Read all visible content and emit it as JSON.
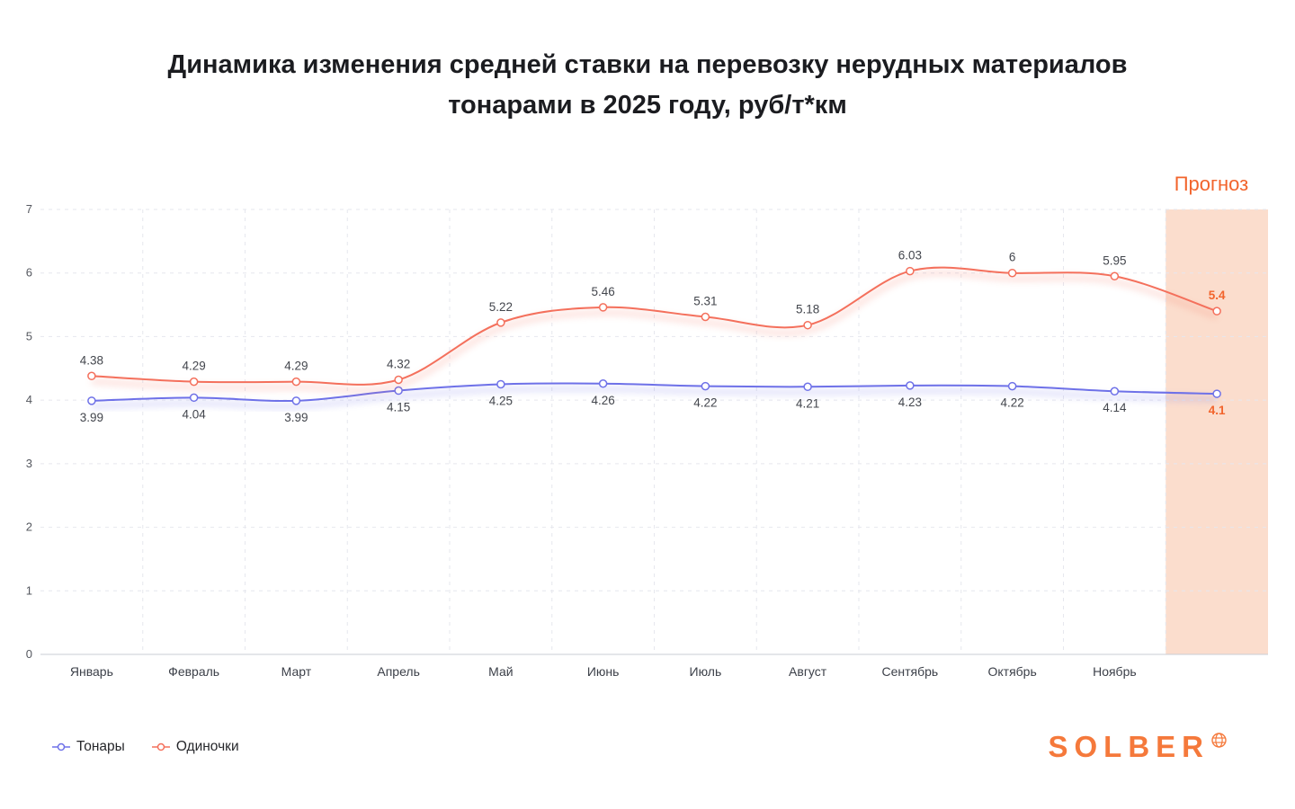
{
  "title": {
    "line1": "Динамика изменения средней ставки на перевозку нерудных материалов",
    "line2": "тонарами в 2025 году, руб/т*км"
  },
  "forecast": {
    "label": "Прогноз",
    "color": "#F2642C",
    "region_fill": "#FBDDCD"
  },
  "legend": {
    "items": [
      {
        "label": "Тонары"
      },
      {
        "label": "Одиночки"
      }
    ]
  },
  "logo": {
    "text": "SOLBER",
    "color": "#F5793B"
  },
  "chart_data": {
    "type": "line",
    "categories": [
      "Январь",
      "Февраль",
      "Март",
      "Апрель",
      "Май",
      "Июнь",
      "Июль",
      "Август",
      "Сентябрь",
      "Октябрь",
      "Ноябрь",
      ""
    ],
    "series": [
      {
        "name": "Тонары",
        "color": "#6E71E8",
        "label_position": "below",
        "values": [
          3.99,
          4.04,
          3.99,
          4.15,
          4.25,
          4.26,
          4.22,
          4.21,
          4.23,
          4.22,
          4.14,
          4.1
        ]
      },
      {
        "name": "Одиночки",
        "color": "#F4705C",
        "label_position": "above",
        "values": [
          4.38,
          4.29,
          4.29,
          4.32,
          5.22,
          5.46,
          5.31,
          5.18,
          6.03,
          6,
          5.95,
          5.4
        ]
      }
    ],
    "ylim": [
      0,
      7
    ],
    "yticks": [
      0,
      1,
      2,
      3,
      4,
      5,
      6,
      7
    ],
    "grid": true,
    "legend_position": "bottom-left",
    "forecast_start_index": 11
  }
}
